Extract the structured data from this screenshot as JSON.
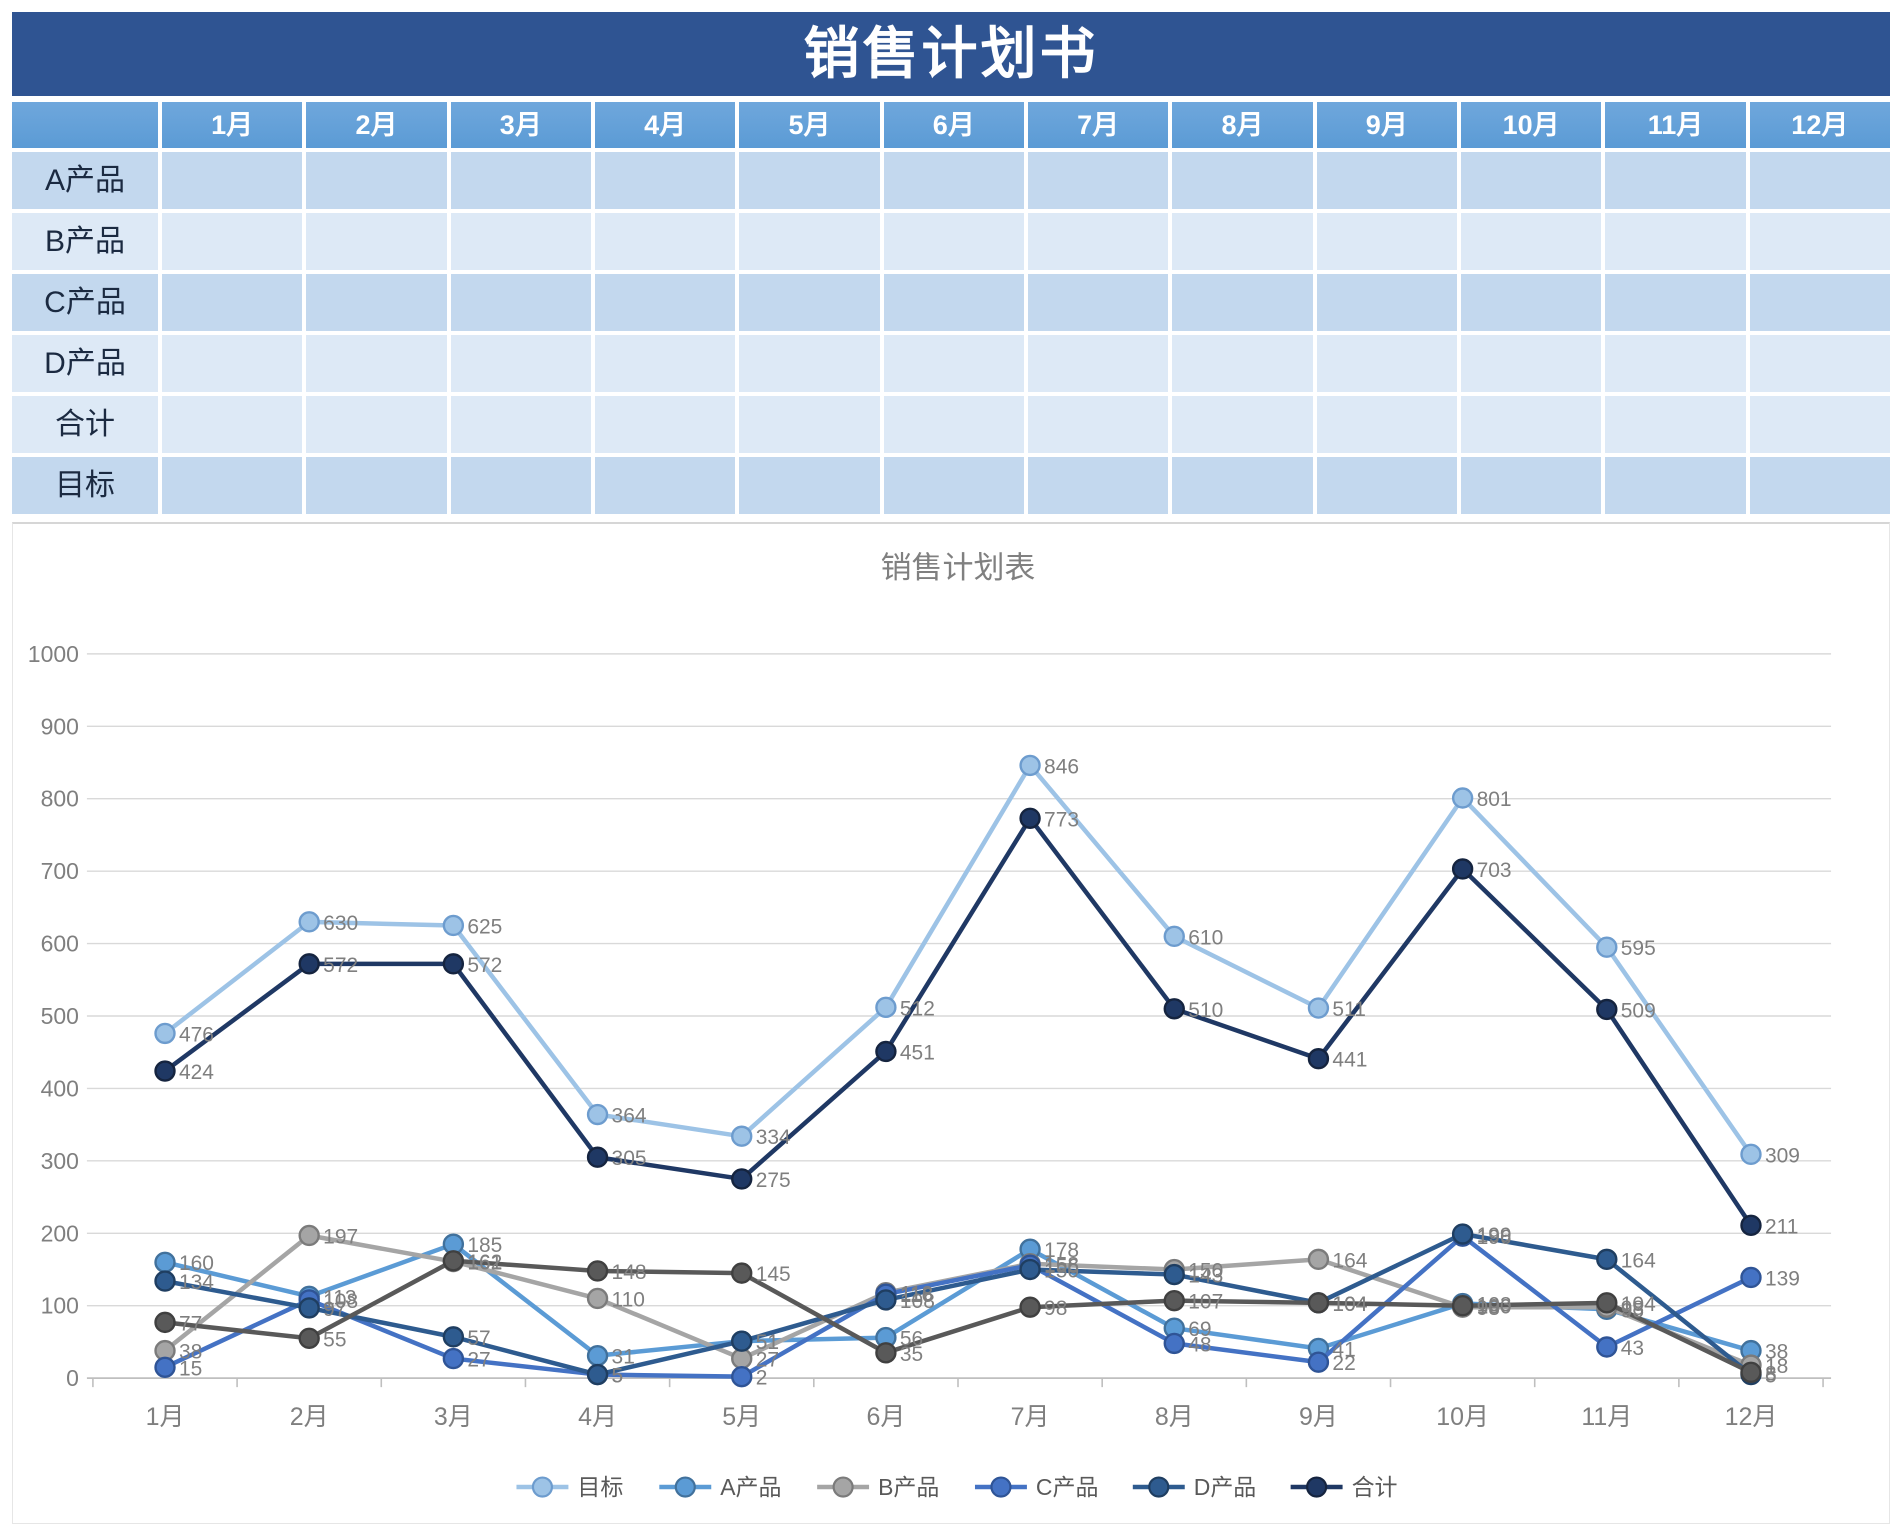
{
  "header": {
    "title": "销售计划书"
  },
  "table": {
    "corner_label": "",
    "months": [
      "1月",
      "2月",
      "3月",
      "4月",
      "5月",
      "6月",
      "7月",
      "8月",
      "9月",
      "10月",
      "11月",
      "12月"
    ],
    "rows": [
      {
        "label": "A产品",
        "shade": "dark",
        "cells": [
          "",
          "",
          "",
          "",
          "",
          "",
          "",
          "",
          "",
          "",
          "",
          ""
        ]
      },
      {
        "label": "B产品",
        "shade": "light",
        "cells": [
          "",
          "",
          "",
          "",
          "",
          "",
          "",
          "",
          "",
          "",
          "",
          ""
        ]
      },
      {
        "label": "C产品",
        "shade": "dark",
        "cells": [
          "",
          "",
          "",
          "",
          "",
          "",
          "",
          "",
          "",
          "",
          "",
          ""
        ]
      },
      {
        "label": "D产品",
        "shade": "light",
        "cells": [
          "",
          "",
          "",
          "",
          "",
          "",
          "",
          "",
          "",
          "",
          "",
          ""
        ]
      },
      {
        "label": "合计",
        "shade": "light",
        "cells": [
          "",
          "",
          "",
          "",
          "",
          "",
          "",
          "",
          "",
          "",
          "",
          ""
        ]
      },
      {
        "label": "目标",
        "shade": "dark",
        "cells": [
          "",
          "",
          "",
          "",
          "",
          "",
          "",
          "",
          "",
          "",
          "",
          ""
        ]
      }
    ]
  },
  "chart_data": {
    "type": "line",
    "title": "销售计划表",
    "categories": [
      "1月",
      "2月",
      "3月",
      "4月",
      "5月",
      "6月",
      "7月",
      "8月",
      "9月",
      "10月",
      "11月",
      "12月"
    ],
    "ylim": [
      0,
      1000
    ],
    "ytick_step": 100,
    "grid": true,
    "legend_position": "bottom",
    "title_color": "#808080",
    "label_color": "#7F7F7F",
    "axis_color": "#BFBFBF",
    "gridline_color": "#D9D9D9",
    "legend_text_color": "#595959",
    "series": [
      {
        "name": "目标",
        "color": "#9DC3E6",
        "marker_stroke": "#6D9CCE",
        "in_legend": true,
        "values": [
          476,
          630,
          625,
          364,
          334,
          512,
          846,
          610,
          511,
          801,
          595,
          309
        ]
      },
      {
        "name": "A产品",
        "color": "#5B9BD5",
        "marker_stroke": "#41719C",
        "in_legend": true,
        "values": [
          160,
          113,
          185,
          31,
          51,
          56,
          178,
          69,
          41,
          103,
          95,
          38
        ]
      },
      {
        "name": "B产品",
        "color": "#A5A5A5",
        "marker_stroke": "#7B7B7B",
        "in_legend": true,
        "values": [
          38,
          197,
          161,
          110,
          27,
          118,
          158,
          150,
          164,
          98,
          98,
          18
        ]
      },
      {
        "name": "C产品",
        "color": "#4472C4",
        "marker_stroke": "#2F5496",
        "in_legend": true,
        "values": [
          15,
          108,
          27,
          5,
          2,
          116,
          156,
          48,
          22,
          196,
          43,
          139
        ]
      },
      {
        "name": "D产品",
        "color": "#2E5B8F",
        "marker_stroke": "#1F3E61",
        "in_legend": true,
        "values": [
          134,
          97,
          57,
          5,
          51,
          108,
          150,
          143,
          104,
          199,
          164,
          5
        ]
      },
      {
        "name": "合计",
        "color": "#1F3864",
        "marker_stroke": "#15243F",
        "in_legend": true,
        "values": [
          424,
          572,
          572,
          305,
          275,
          451,
          773,
          510,
          441,
          703,
          509,
          211
        ]
      },
      {
        "name": "",
        "color": "#595959",
        "marker_stroke": "#404040",
        "in_legend": false,
        "values": [
          77,
          55,
          162,
          148,
          145,
          35,
          98,
          107,
          104,
          100,
          104,
          8
        ]
      }
    ]
  }
}
